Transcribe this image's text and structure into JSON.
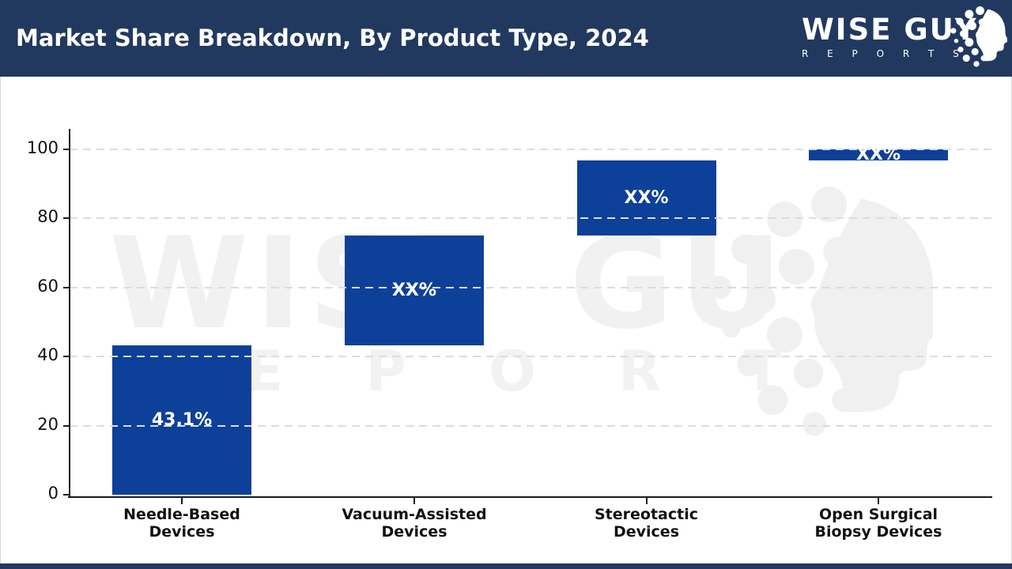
{
  "header": {
    "title": "Market Share Breakdown, By Product Type, 2024",
    "logo_line1": "WISE GUY",
    "logo_line2": "R E P O R T S"
  },
  "watermark": {
    "line1": "WISE GU",
    "line2": "R E P O R T S"
  },
  "chart_data": {
    "type": "bar",
    "subtype": "waterfall",
    "title": "Market Share Breakdown, By Product Type, 2024",
    "categories": [
      "Needle-Based Devices",
      "Vacuum-Assisted Devices",
      "Stereotactic Devices",
      "Open Surgical Biopsy Devices"
    ],
    "category_lines": [
      [
        "Needle-Based",
        "Devices"
      ],
      [
        "Vacuum-Assisted",
        "Devices"
      ],
      [
        "Stereotactic",
        "Devices"
      ],
      [
        "Open Surgical",
        "Biopsy Devices"
      ]
    ],
    "segments": [
      {
        "category": "Needle-Based Devices",
        "label": "43.1%",
        "start": 0,
        "end": 43.1
      },
      {
        "category": "Vacuum-Assisted Devices",
        "label": "XX%",
        "start": 43.1,
        "end": 74.9
      },
      {
        "category": "Stereotactic Devices",
        "label": "XX%",
        "start": 74.9,
        "end": 96.6
      },
      {
        "category": "Open Surgical Biopsy Devices",
        "label": "XX%",
        "start": 96.6,
        "end": 100
      }
    ],
    "xlabel": "",
    "ylabel": "",
    "ylim": [
      0,
      100
    ],
    "yticks": [
      0,
      20,
      40,
      60,
      80,
      100
    ],
    "grid": "horizontal-dashed",
    "legend": "none",
    "colors": {
      "bar": "#0d4099",
      "bar_label": "#ffffff",
      "axis": "#1a1a1a",
      "grid": "#dcdcdc",
      "header_bg": "#21395f",
      "watermark": "#f1f1f1"
    }
  }
}
